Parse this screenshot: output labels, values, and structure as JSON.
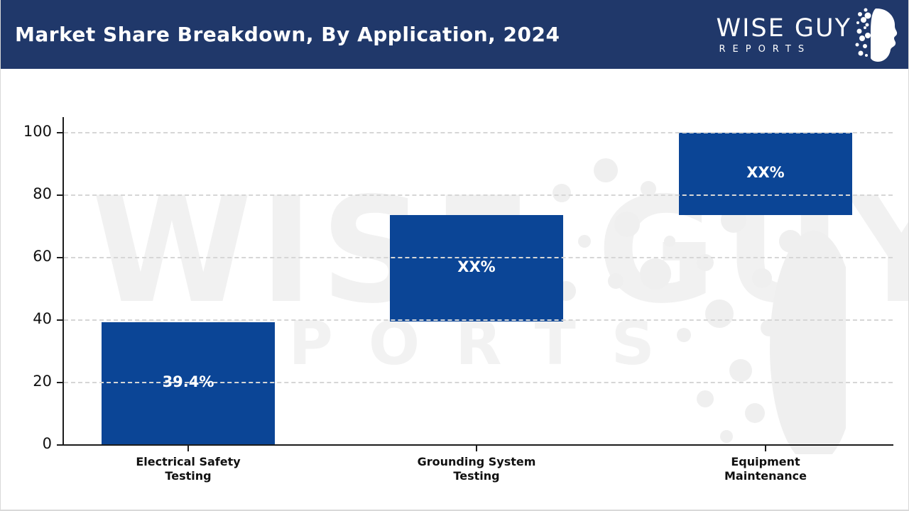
{
  "header": {
    "title": "Market Share Breakdown, By Application, 2024",
    "bg_color": "#20386a",
    "logo": {
      "line1": "WISE GUY",
      "line2": "REPORTS"
    }
  },
  "watermark": {
    "line1": "WISE GUY",
    "line2": "REPORTS"
  },
  "chart_data": {
    "type": "bar",
    "subtype": "waterfall",
    "title": "Market Share Breakdown, By Application, 2024",
    "xlabel": "",
    "ylabel": "",
    "ylim": [
      0,
      100
    ],
    "y_ticks": [
      0,
      20,
      40,
      60,
      80,
      100
    ],
    "grid": "horizontal dashed, drawn above bars",
    "legend": "none",
    "bar_color": "#0b4596",
    "bar_label_color": "#ffffff",
    "axis_color": "#1c1c1c",
    "gridline_color": "#d6d6d6",
    "categories": [
      {
        "label": "Electrical Safety Testing",
        "lines": [
          "Electrical Safety",
          "Testing"
        ]
      },
      {
        "label": "Grounding System Testing",
        "lines": [
          "Grounding System",
          "Testing"
        ]
      },
      {
        "label": "Equipment Maintenance",
        "lines": [
          "Equipment",
          "Maintenance"
        ]
      }
    ],
    "series": [
      {
        "name": "Market Share",
        "segments": [
          {
            "category": "Electrical Safety Testing",
            "start": 0,
            "end": 39.4,
            "label": "39.4%"
          },
          {
            "category": "Grounding System Testing",
            "start": 39.6,
            "end": 73.6,
            "label": "XX%"
          },
          {
            "category": "Equipment Maintenance",
            "start": 73.6,
            "end": 100,
            "label": "XX%"
          }
        ]
      }
    ]
  }
}
